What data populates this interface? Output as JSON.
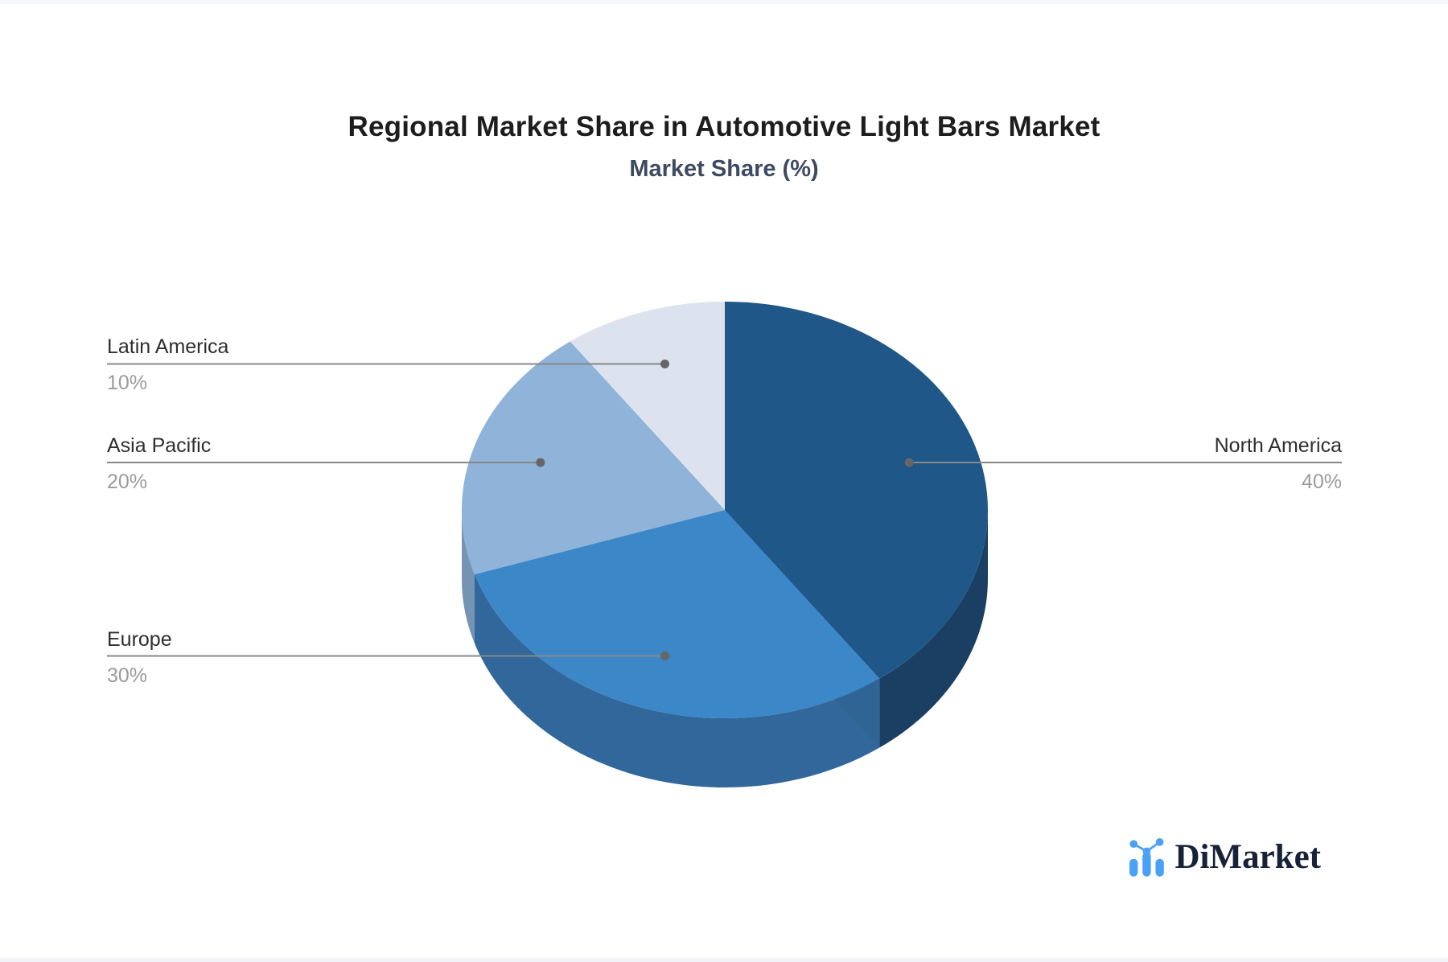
{
  "page": {
    "background": "#ffffff"
  },
  "chart_data": {
    "type": "pie",
    "style": "3d",
    "title": "Regional Market Share in Automotive Light Bars Market",
    "subtitle": "Market Share (%)",
    "unit": "%",
    "start_angle_deg": 0,
    "direction": "clockwise",
    "legend": "none",
    "slices": [
      {
        "label": "North America",
        "value": 40,
        "display": "40%",
        "color": "#1F5788",
        "side_color": "#1A3F63",
        "label_side": "right"
      },
      {
        "label": "Europe",
        "value": 30,
        "display": "30%",
        "color": "#3B87C8",
        "side_color": "#31679A",
        "label_side": "left"
      },
      {
        "label": "Asia Pacific",
        "value": 20,
        "display": "20%",
        "color": "#8FB3D9",
        "side_color": "#7593B3",
        "label_side": "left"
      },
      {
        "label": "Latin America",
        "value": 10,
        "display": "10%",
        "color": "#DCE3EF",
        "side_color": "#B9C4D6",
        "label_side": "left"
      }
    ],
    "divider_face_color": "#2F6494",
    "connector_color": "#888888",
    "connector_dot_color": "#666666",
    "label_name_color": "#2E2E2E",
    "label_value_color": "#9B9B9B",
    "title_color": "#1D1D1D",
    "subtitle_color": "#3E4A61"
  },
  "branding": {
    "logo_text": "DiMarket",
    "logo_text_color": "#172139",
    "logo_icon": "bar-line-chart-logo-icon",
    "logo_icon_color": "#4AA1F6"
  }
}
